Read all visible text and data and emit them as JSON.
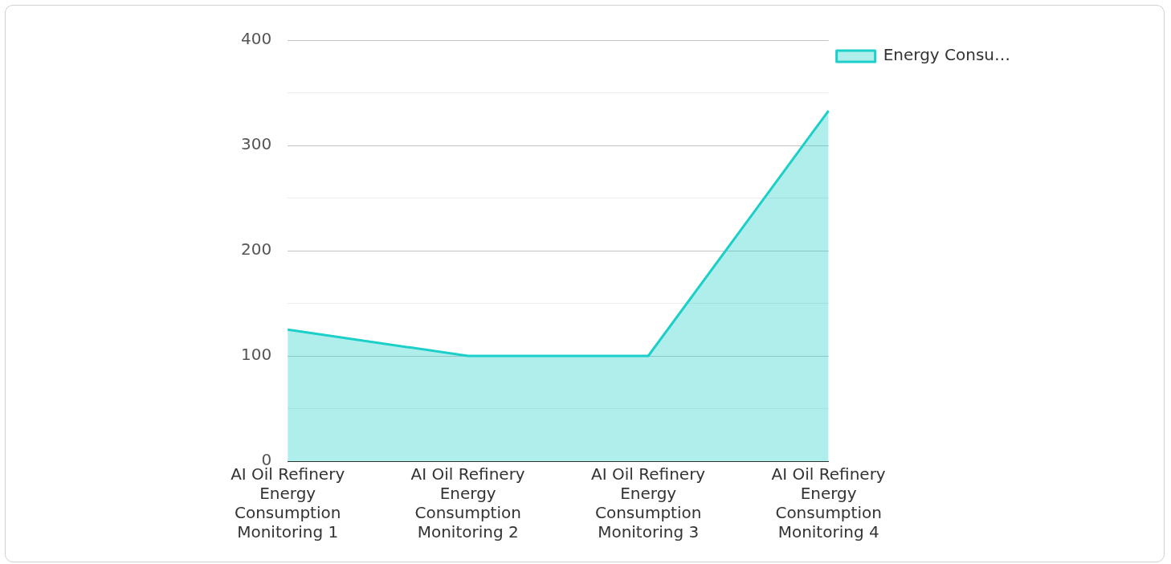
{
  "chart_data": {
    "type": "area",
    "categories": [
      "AI Oil Refinery Energy Consumption Monitoring 1",
      "AI Oil Refinery Energy Consumption Monitoring 2",
      "AI Oil Refinery Energy Consumption Monitoring 3",
      "AI Oil Refinery Energy Consumption Monitoring 4"
    ],
    "series": [
      {
        "name": "Energy Consu…",
        "color": "#1ccfc9",
        "values": [
          125,
          100,
          100,
          333
        ]
      }
    ],
    "ylim": [
      0,
      400
    ],
    "yticks": [
      0,
      {
        "value": 50,
        "label": null
      },
      100,
      {
        "value": 150,
        "label": null
      },
      200,
      {
        "value": 250,
        "label": null
      },
      300,
      {
        "value": 350,
        "label": null
      },
      400
    ],
    "grid": "y",
    "legend": "top right",
    "marker": "none"
  }
}
